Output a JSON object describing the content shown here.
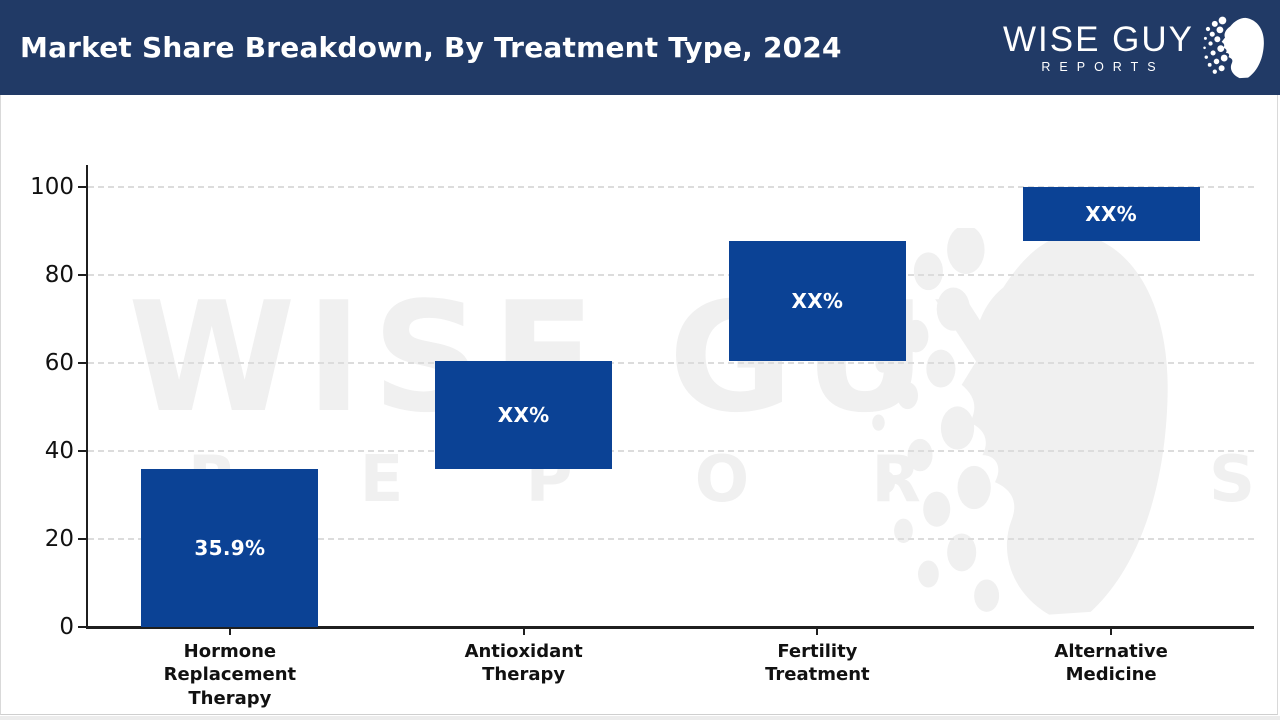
{
  "header": {
    "title": "Market Share Breakdown, By Treatment Type, 2024",
    "bg_color": "#213a66",
    "logo": {
      "line1": "WISE GUY",
      "line2": "REPORTS"
    }
  },
  "watermark": {
    "line1": "WISE GUY",
    "line2": "R E P O R T S",
    "color": "#f0f0f0"
  },
  "chart_data": {
    "type": "bar",
    "subtype": "stacked-waterfall",
    "title": "Market Share Breakdown, By Treatment Type, 2024",
    "categories": [
      "Hormone Replacement Therapy",
      "Antioxidant Therapy",
      "Fertility Treatment",
      "Alternative Medicine"
    ],
    "segments": [
      {
        "category": "Hormone Replacement Therapy",
        "label_lines": [
          "Hormone",
          "Replacement",
          "Therapy"
        ],
        "start": 0,
        "end": 35.9,
        "label": "35.9%"
      },
      {
        "category": "Antioxidant Therapy",
        "label_lines": [
          "Antioxidant",
          "Therapy"
        ],
        "start": 35.9,
        "end": 60.5,
        "label": "XX%"
      },
      {
        "category": "Fertility Treatment",
        "label_lines": [
          "Fertility",
          "Treatment"
        ],
        "start": 60.5,
        "end": 87.8,
        "label": "XX%"
      },
      {
        "category": "Alternative Medicine",
        "label_lines": [
          "Alternative",
          "Medicine"
        ],
        "start": 87.8,
        "end": 100,
        "label": "XX%"
      }
    ],
    "ylim": [
      0,
      100
    ],
    "yticks": [
      0,
      20,
      40,
      60,
      80,
      100
    ],
    "xlabel": "",
    "ylabel": "",
    "grid": {
      "axis": "y",
      "style": "dashed",
      "color": "#dcdcdc"
    },
    "legend": "none",
    "bar_color": "#0b4295",
    "bar_label_color": "#ffffff"
  }
}
